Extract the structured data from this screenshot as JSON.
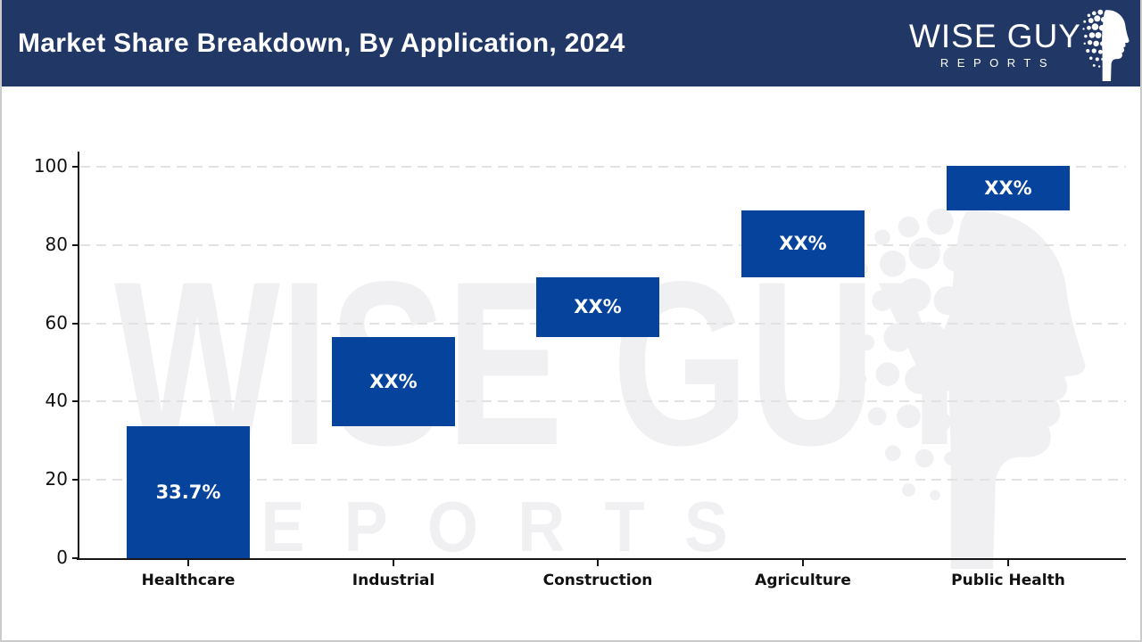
{
  "header": {
    "title": "Market Share Breakdown, By Application, 2024",
    "logo": {
      "line1": "WISE GUY",
      "line2": "REPORTS"
    }
  },
  "watermark": {
    "line1": "WISE GUY",
    "line2": "REPORTS"
  },
  "chart_data": {
    "type": "bar",
    "subtype": "waterfall",
    "title": "Market Share Breakdown, By Application, 2024",
    "xlabel": "",
    "ylabel": "",
    "categories": [
      "Healthcare",
      "Industrial",
      "Construction",
      "Agriculture",
      "Public Health"
    ],
    "bars": [
      {
        "category": "Healthcare",
        "start": 0,
        "end": 33.7,
        "label": "33.7%"
      },
      {
        "category": "Industrial",
        "start": 33.7,
        "end": 56.6,
        "label": "XX%"
      },
      {
        "category": "Construction",
        "start": 56.6,
        "end": 71.8,
        "label": "XX%"
      },
      {
        "category": "Agriculture",
        "start": 71.8,
        "end": 88.8,
        "label": "XX%"
      },
      {
        "category": "Public Health",
        "start": 88.8,
        "end": 100.3,
        "label": "XX%"
      }
    ],
    "yticks": [
      0,
      20,
      40,
      60,
      80,
      100
    ],
    "ylim": [
      0,
      104
    ],
    "grid": "dashed-horizontal",
    "legend": "none",
    "bar_color": "#05439C",
    "bar_label_color": "#FFFFFF"
  },
  "colors": {
    "header_bg": "#213866",
    "bar_blue": "#05439C",
    "watermark_gray": "#F0F0F3",
    "grid_gray": "#E2E2E2",
    "axis_black": "#161616",
    "page_border": "#CBCBCB"
  }
}
